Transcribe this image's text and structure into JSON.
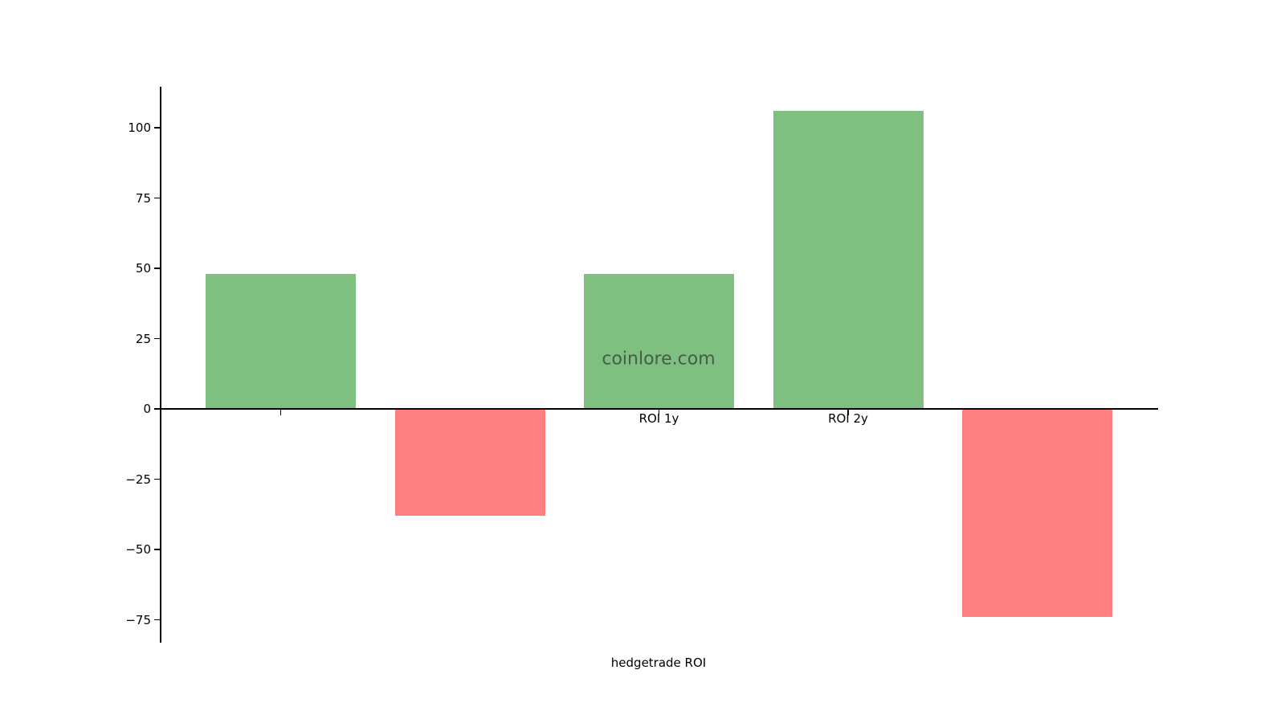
{
  "page": {
    "background_color": "#ffffff",
    "axis_color": "#000000",
    "text_color": "#000000"
  },
  "watermark": {
    "text": "coinlore.com"
  },
  "chart_data": {
    "type": "bar",
    "title": "",
    "xlabel": "hedgetrade ROI",
    "ylabel": "",
    "categories": [
      "",
      "",
      "ROI 1y",
      "ROI 2y",
      ""
    ],
    "values": [
      48,
      -38,
      48,
      106,
      -74
    ],
    "series_name": "hedgetrade ROI %",
    "positive_color": "#7fbf7f",
    "negative_color": "#ff7f7f",
    "ytick_values": [
      100,
      75,
      50,
      25,
      0,
      -25,
      -50,
      -75
    ],
    "ytick_labels": [
      "100",
      "75",
      "50",
      "25",
      "0",
      "−25",
      "−50",
      "−75"
    ],
    "ylim": [
      -83,
      115
    ],
    "grid": false,
    "legend": false,
    "watermark_text": "coinlore.com"
  }
}
